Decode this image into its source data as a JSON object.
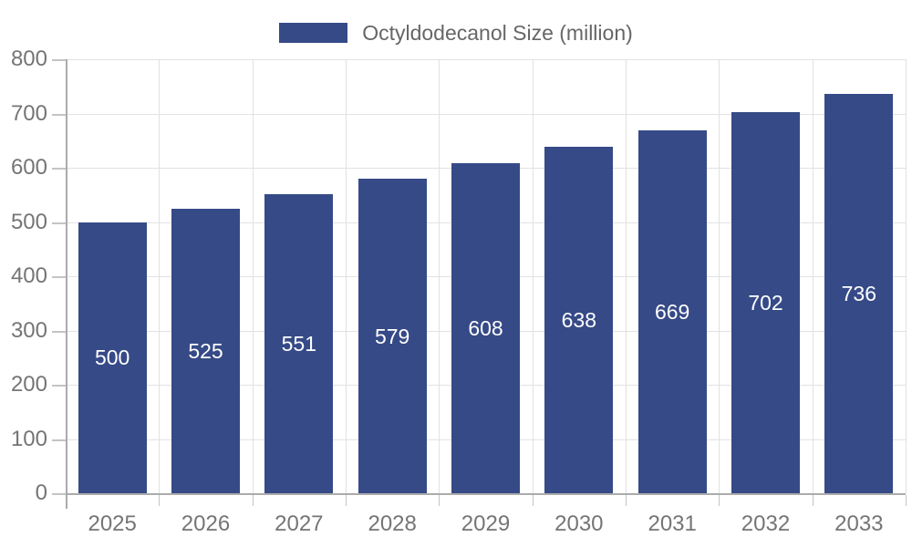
{
  "chart_data": {
    "type": "bar",
    "title": "Octyldodecanol Size (million)",
    "categories": [
      "2025",
      "2026",
      "2027",
      "2028",
      "2029",
      "2030",
      "2031",
      "2032",
      "2033"
    ],
    "values": [
      500,
      525,
      551,
      579,
      608,
      638,
      669,
      702,
      736
    ],
    "xlabel": "",
    "ylabel": "",
    "ylim": [
      0,
      800
    ],
    "yticks": [
      0,
      100,
      200,
      300,
      400,
      500,
      600,
      700,
      800
    ],
    "grid": true,
    "legend_position": "top-center",
    "colors": {
      "bar": "#364A87",
      "value_label": "#ffffff",
      "axis_text": "#757575",
      "legend_text": "#666666",
      "gridline": "#e2e2e2",
      "axis_line": "#ababab"
    }
  }
}
